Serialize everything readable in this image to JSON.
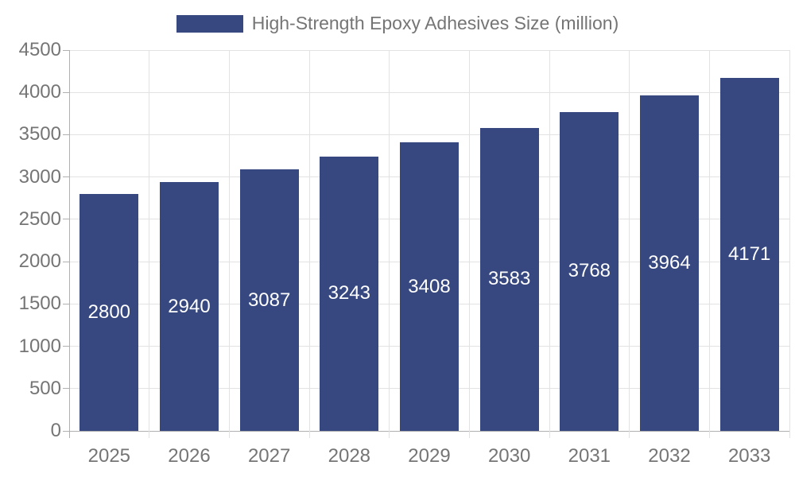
{
  "colors": {
    "bar": "#36487f",
    "bar_label": "#ffffff",
    "axis_text": "#757575",
    "grid_line": "#e2e2e2",
    "axis_line": "#b0b0b0",
    "background": "#ffffff"
  },
  "chart_data": {
    "type": "bar",
    "title": "High-Strength Epoxy Adhesives Size (million)",
    "categories": [
      "2025",
      "2026",
      "2027",
      "2028",
      "2029",
      "2030",
      "2031",
      "2032",
      "2033"
    ],
    "values": [
      2800,
      2940,
      3087,
      3243,
      3408,
      3583,
      3768,
      3964,
      4171
    ],
    "xlabel": "",
    "ylabel": "",
    "ylim": [
      0,
      4500
    ],
    "ytick_step": 500,
    "yticks": [
      0,
      500,
      1000,
      1500,
      2000,
      2500,
      3000,
      3500,
      4000,
      4500
    ],
    "grid": true,
    "legend_position": "top-center",
    "bar_label_position": "inside-middle"
  }
}
